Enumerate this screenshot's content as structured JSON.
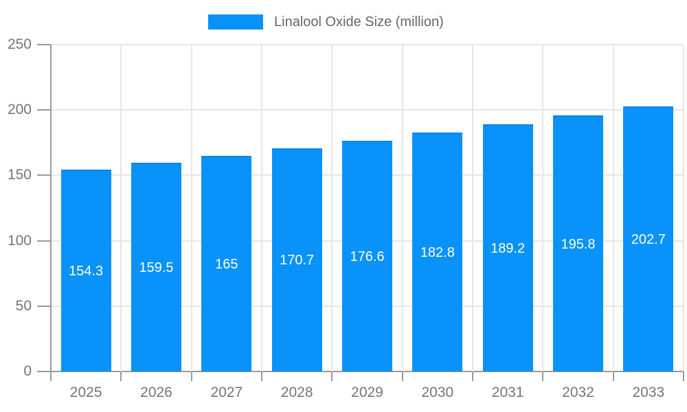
{
  "chart_data": {
    "type": "bar",
    "title": "",
    "legend_label": "Linalool Oxide Size (million)",
    "legend_position": "top",
    "categories": [
      "2025",
      "2026",
      "2027",
      "2028",
      "2029",
      "2030",
      "2031",
      "2032",
      "2033"
    ],
    "values": [
      154.3,
      159.5,
      165,
      170.7,
      176.6,
      182.8,
      189.2,
      195.8,
      202.7
    ],
    "value_labels": [
      "154.3",
      "159.5",
      "165",
      "170.7",
      "176.6",
      "182.8",
      "189.2",
      "195.8",
      "202.7"
    ],
    "xlabel": "",
    "ylabel": "",
    "ylim": [
      0,
      250
    ],
    "yticks": [
      0,
      50,
      100,
      150,
      200,
      250
    ],
    "grid": true,
    "colors": {
      "bar_fill": "#0892fa",
      "bar_top_border": "#0a85e2",
      "axis_line": "#999999",
      "grid_line": "#e6e6e6",
      "tick_mark": "#999999",
      "tick_label": "#757575",
      "legend_text": "#666666",
      "value_label": "#ffffff",
      "background": "#ffffff"
    }
  }
}
